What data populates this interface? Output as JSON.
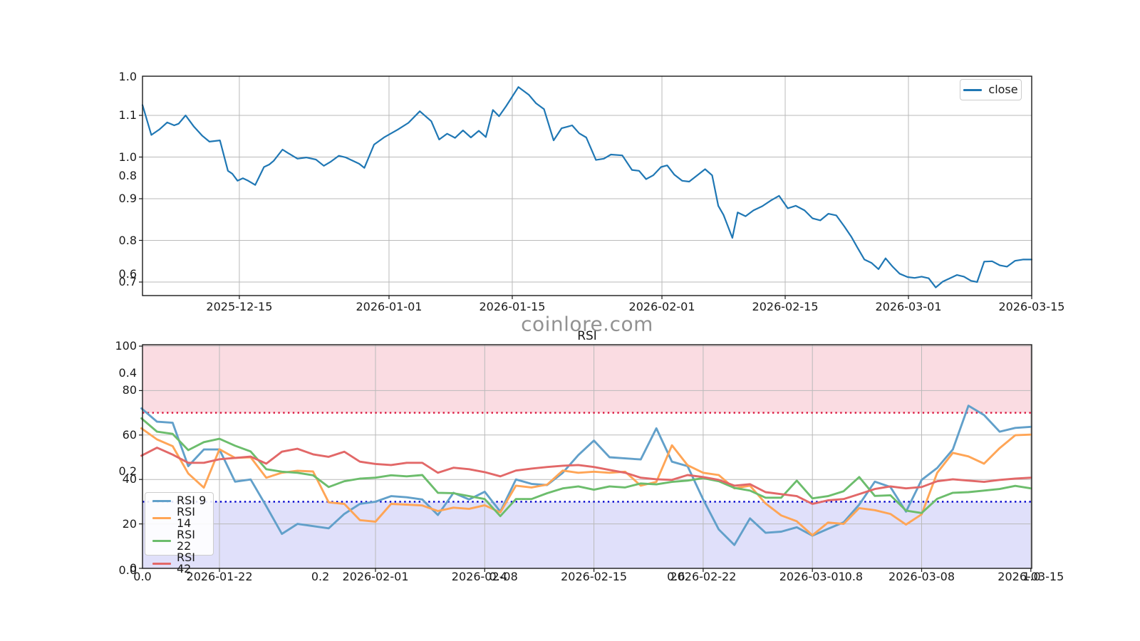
{
  "watermark": "coinlore.com",
  "colors": {
    "close_line": "#1f77b4",
    "rsi9": "#62a0ca",
    "rsi14": "#ffa556",
    "rsi22": "#6cbd6c",
    "rsi42": "#e26868",
    "overbought_band": "#fadce2",
    "oversold_band": "#e0e0fa",
    "overbought_line": "#dc143c",
    "oversold_line": "#0000cd",
    "grid": "#bababa",
    "spine": "#1a1a1a",
    "tick_text": "#1a1a1a",
    "watermark_text": "#929292"
  },
  "ghost_axis": {
    "y_labels": [
      {
        "label": "1.0",
        "f": 1.0
      },
      {
        "label": "0.8",
        "f": 0.8
      },
      {
        "label": "0.6",
        "f": 0.6
      },
      {
        "label": "0.4",
        "f": 0.4
      },
      {
        "label": "0.2",
        "f": 0.2
      },
      {
        "label": "0.0",
        "f": 0.0
      }
    ],
    "x_labels": [
      {
        "label": "0.0",
        "f": 0.0
      },
      {
        "label": "0.2",
        "f": 0.2
      },
      {
        "label": "0.4",
        "f": 0.4
      },
      {
        "label": "0.6",
        "f": 0.6
      },
      {
        "label": "0.8",
        "f": 0.8
      },
      {
        "label": "1.0",
        "f": 1.0
      }
    ]
  },
  "chart_data": [
    {
      "id": "price",
      "type": "line",
      "legend": {
        "position": "upper right"
      },
      "x_axis": {
        "unit": "date",
        "day_origin": "2025-12-04",
        "range_days": [
          0,
          101
        ],
        "ticks": [
          {
            "label": "2025-12-15",
            "day": 11
          },
          {
            "label": "2026-01-01",
            "day": 28
          },
          {
            "label": "2026-01-15",
            "day": 42
          },
          {
            "label": "2026-02-01",
            "day": 59
          },
          {
            "label": "2026-02-15",
            "day": 73
          },
          {
            "label": "2026-03-01",
            "day": 87
          },
          {
            "label": "2026-03-15",
            "day": 101
          }
        ]
      },
      "y_axis": {
        "range": [
          0.667,
          1.194
        ],
        "ticks": [
          {
            "label": "1.1",
            "v": 1.1
          },
          {
            "label": "1.0",
            "v": 1.0
          },
          {
            "label": "0.9",
            "v": 0.9
          },
          {
            "label": "0.8",
            "v": 0.8
          },
          {
            "label": "0.7",
            "v": 0.7
          }
        ]
      },
      "series": [
        {
          "name": "close",
          "color": "#1f77b4",
          "points": [
            [
              0,
              1.125
            ],
            [
              1,
              1.053
            ],
            [
              1.9,
              1.066
            ],
            [
              2.8,
              1.083
            ],
            [
              3.6,
              1.076
            ],
            [
              4.1,
              1.08
            ],
            [
              4.9,
              1.1
            ],
            [
              5.8,
              1.074
            ],
            [
              6.8,
              1.051
            ],
            [
              7.6,
              1.037
            ],
            [
              8.8,
              1.04
            ],
            [
              9.7,
              0.967
            ],
            [
              10.2,
              0.96
            ],
            [
              10.8,
              0.943
            ],
            [
              11.4,
              0.949
            ],
            [
              12,
              0.943
            ],
            [
              12.8,
              0.933
            ],
            [
              13.8,
              0.976
            ],
            [
              14.4,
              0.982
            ],
            [
              14.9,
              0.991
            ],
            [
              15.9,
              1.018
            ],
            [
              16.5,
              1.01
            ],
            [
              17.6,
              0.996
            ],
            [
              18.6,
              0.999
            ],
            [
              19.7,
              0.994
            ],
            [
              20.6,
              0.979
            ],
            [
              21.4,
              0.989
            ],
            [
              22.3,
              1.003
            ],
            [
              23.1,
              0.999
            ],
            [
              24.6,
              0.984
            ],
            [
              25.2,
              0.974
            ],
            [
              26.3,
              1.03
            ],
            [
              27.5,
              1.048
            ],
            [
              29,
              1.066
            ],
            [
              30.2,
              1.082
            ],
            [
              31.5,
              1.11
            ],
            [
              32.8,
              1.086
            ],
            [
              33.7,
              1.042
            ],
            [
              34.6,
              1.056
            ],
            [
              35.5,
              1.046
            ],
            [
              36.4,
              1.064
            ],
            [
              37.3,
              1.047
            ],
            [
              38.2,
              1.063
            ],
            [
              39,
              1.048
            ],
            [
              39.8,
              1.113
            ],
            [
              40.5,
              1.098
            ],
            [
              41.3,
              1.122
            ],
            [
              42.7,
              1.168
            ],
            [
              43.9,
              1.149
            ],
            [
              44.7,
              1.129
            ],
            [
              45.6,
              1.115
            ],
            [
              46.7,
              1.04
            ],
            [
              47.6,
              1.069
            ],
            [
              48.3,
              1.073
            ],
            [
              48.8,
              1.076
            ],
            [
              49.6,
              1.057
            ],
            [
              50.4,
              1.047
            ],
            [
              51.5,
              0.993
            ],
            [
              52.4,
              0.996
            ],
            [
              53.2,
              1.006
            ],
            [
              54.5,
              1.004
            ],
            [
              55.6,
              0.969
            ],
            [
              56.4,
              0.967
            ],
            [
              57.2,
              0.947
            ],
            [
              58,
              0.956
            ],
            [
              58.9,
              0.976
            ],
            [
              59.6,
              0.98
            ],
            [
              60.4,
              0.958
            ],
            [
              61.3,
              0.943
            ],
            [
              62.1,
              0.941
            ],
            [
              63,
              0.956
            ],
            [
              63.9,
              0.971
            ],
            [
              64.7,
              0.956
            ],
            [
              65.4,
              0.883
            ],
            [
              66,
              0.861
            ],
            [
              67,
              0.806
            ],
            [
              67.6,
              0.867
            ],
            [
              68.5,
              0.858
            ],
            [
              69.4,
              0.872
            ],
            [
              70.4,
              0.882
            ],
            [
              71.4,
              0.896
            ],
            [
              72.3,
              0.907
            ],
            [
              73.3,
              0.877
            ],
            [
              74.2,
              0.883
            ],
            [
              75.2,
              0.872
            ],
            [
              76.1,
              0.853
            ],
            [
              77,
              0.848
            ],
            [
              77.9,
              0.864
            ],
            [
              78.8,
              0.86
            ],
            [
              79.7,
              0.834
            ],
            [
              80.5,
              0.809
            ],
            [
              81.2,
              0.783
            ],
            [
              82,
              0.754
            ],
            [
              82.8,
              0.746
            ],
            [
              83.6,
              0.731
            ],
            [
              84.4,
              0.757
            ],
            [
              85.2,
              0.737
            ],
            [
              86,
              0.72
            ],
            [
              86.9,
              0.712
            ],
            [
              87.7,
              0.71
            ],
            [
              88.5,
              0.713
            ],
            [
              89.3,
              0.709
            ],
            [
              90.1,
              0.687
            ],
            [
              90.9,
              0.701
            ],
            [
              91.7,
              0.709
            ],
            [
              92.5,
              0.717
            ],
            [
              93.3,
              0.713
            ],
            [
              94.1,
              0.703
            ],
            [
              94.8,
              0.7
            ],
            [
              95.6,
              0.749
            ],
            [
              96.5,
              0.75
            ],
            [
              97.4,
              0.74
            ],
            [
              98.2,
              0.737
            ],
            [
              99.1,
              0.751
            ],
            [
              100,
              0.754
            ],
            [
              101,
              0.754
            ]
          ]
        }
      ]
    },
    {
      "id": "rsi",
      "type": "line",
      "title": "RSI",
      "legend": {
        "position": "lower left"
      },
      "bands": [
        {
          "name": "overbought",
          "from": 70,
          "to": 101,
          "color": "#fadce2"
        },
        {
          "name": "oversold",
          "from": 0,
          "to": 30,
          "color": "#e0e0fa"
        }
      ],
      "hlines": [
        {
          "v": 70,
          "color": "#dc143c",
          "style": "dotted"
        },
        {
          "v": 30,
          "color": "#0000cd",
          "style": "dotted"
        }
      ],
      "x_axis": {
        "unit": "date",
        "day_origin": "2026-01-17",
        "range_days": [
          0,
          57
        ],
        "ticks": [
          {
            "label": "2026-01-22",
            "day": 5
          },
          {
            "label": "2026-02-01",
            "day": 15
          },
          {
            "label": "2026-02-08",
            "day": 22
          },
          {
            "label": "2026-02-15",
            "day": 29
          },
          {
            "label": "2026-02-22",
            "day": 36
          },
          {
            "label": "2026-03-01",
            "day": 43
          },
          {
            "label": "2026-03-08",
            "day": 50
          },
          {
            "label": "2026-03-15",
            "day": 57
          }
        ]
      },
      "y_axis": {
        "range": [
          0,
          100.6
        ],
        "ticks": [
          {
            "label": "100",
            "v": 100
          },
          {
            "label": "80",
            "v": 80
          },
          {
            "label": "60",
            "v": 60
          },
          {
            "label": "40",
            "v": 40
          },
          {
            "label": "20",
            "v": 20
          },
          {
            "label": "0",
            "v": 0
          }
        ]
      },
      "series": [
        {
          "name": "RSI 9",
          "color": "#62a0ca",
          "day_start": 0,
          "values": [
            72,
            66,
            65.5,
            46,
            53.5,
            53.5,
            39,
            40,
            28,
            15.5,
            20,
            19,
            18,
            24.5,
            29,
            30,
            32.5,
            32,
            31,
            24,
            34,
            31,
            34.5,
            25.5,
            40,
            38,
            37.5,
            43,
            51,
            57.5,
            50,
            49.5,
            49,
            63,
            48,
            46,
            31,
            17.5,
            10.5,
            22.5,
            16,
            16.5,
            18.5,
            14.7,
            17.8,
            20.7,
            28.7,
            39,
            36.6,
            25.5,
            39.8,
            45.2,
            53.5,
            73.2,
            69,
            61.5,
            63.2,
            63.7
          ]
        },
        {
          "name": "RSI 14",
          "color": "#ffa556",
          "day_start": 0,
          "values": [
            63,
            58,
            55,
            42.7,
            36.3,
            53.6,
            49.7,
            50,
            40.8,
            43,
            43.9,
            43.6,
            29.7,
            29,
            21.7,
            21,
            29,
            28.7,
            28.3,
            25.8,
            27.3,
            26.8,
            28.4,
            25.2,
            37.2,
            36.4,
            37.7,
            44,
            43,
            43.5,
            43,
            43.5,
            37.2,
            38.9,
            55.4,
            46.4,
            43,
            42,
            36,
            37.2,
            29.2,
            23.8,
            21.2,
            14.9,
            20.6,
            20,
            27.1,
            26.2,
            24.5,
            19.7,
            24.3,
            43,
            52,
            50.4,
            47.1,
            54.1,
            59.9,
            60.2
          ]
        },
        {
          "name": "RSI 22",
          "color": "#6cbd6c",
          "day_start": 0,
          "values": [
            67.5,
            61.5,
            60.5,
            53.2,
            56.8,
            58.3,
            55.2,
            52.6,
            44.6,
            43.5,
            43,
            41.9,
            36.6,
            39.2,
            40.4,
            40.8,
            41.9,
            41.4,
            42,
            34,
            33.8,
            32.5,
            31.2,
            23.5,
            31.2,
            31.2,
            33.8,
            36,
            36.9,
            35.4,
            36.9,
            36.4,
            38.2,
            37.8,
            38.9,
            39.5,
            40.6,
            39.2,
            36.2,
            35,
            31.8,
            31.8,
            39.5,
            31.5,
            32.5,
            34.7,
            41.1,
            32.6,
            32.9,
            26,
            24.9,
            31.3,
            34,
            34.3,
            35,
            35.7,
            37.1,
            36
          ]
        },
        {
          "name": "RSI 42",
          "color": "#e26868",
          "day_start": 0,
          "values": [
            50.7,
            54.3,
            51.2,
            47.5,
            47.5,
            49.1,
            49.7,
            50.3,
            47.1,
            52.5,
            53.8,
            51.3,
            50.2,
            52.5,
            48,
            47,
            46.5,
            47.5,
            47.5,
            43,
            45.3,
            44.6,
            43.3,
            41.4,
            44,
            44.9,
            45.6,
            46.2,
            46.5,
            45.6,
            44.3,
            43,
            40.8,
            40.1,
            39.8,
            42,
            41.1,
            39.8,
            37.2,
            37.9,
            34.3,
            33.4,
            32.5,
            29,
            30.6,
            31.2,
            33.4,
            35.7,
            36.9,
            36,
            36.6,
            39.2,
            40.1,
            39.5,
            38.9,
            39.8,
            40.4,
            40.8
          ]
        }
      ]
    }
  ]
}
